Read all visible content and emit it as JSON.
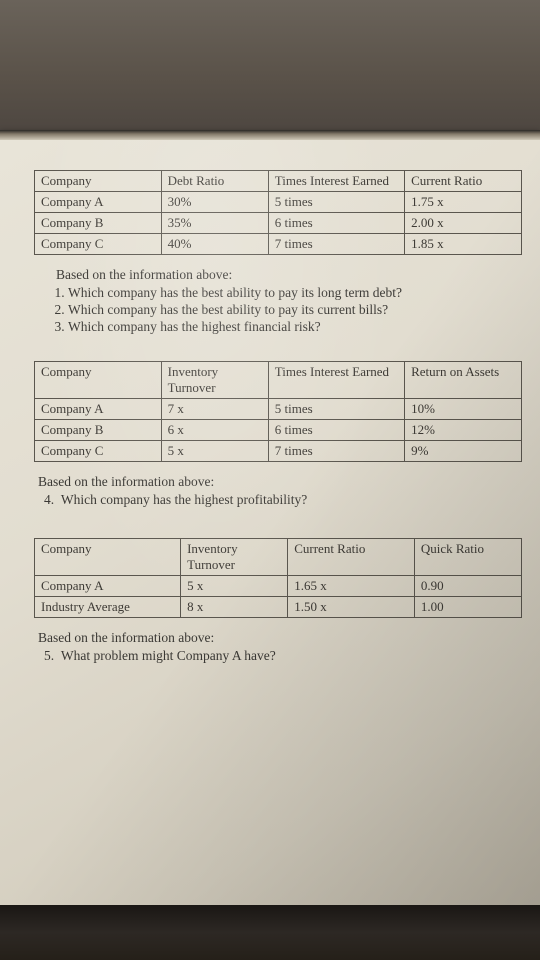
{
  "colors": {
    "ink": "#3a3834",
    "border": "#5a564e",
    "paper_light": "#e8e4d8",
    "paper_dark": "#c7c0b0",
    "wall": "#5a5249",
    "desk": "#252019"
  },
  "table1": {
    "headers": [
      "Company",
      "Debt Ratio",
      "Times Interest Earned",
      "Current Ratio"
    ],
    "rows": [
      [
        "Company A",
        "30%",
        "5 times",
        "1.75 x"
      ],
      [
        "Company B",
        "35%",
        "6 times",
        "2.00 x"
      ],
      [
        "Company C",
        "40%",
        "7 times",
        "1.85 x"
      ]
    ]
  },
  "q_block1": {
    "intro": "Based on the information above:",
    "items": [
      "Which company has the best ability to pay its long term debt?",
      "Which company has the best ability to pay its current bills?",
      "Which company has the highest financial risk?"
    ]
  },
  "table2": {
    "headers": [
      "Company",
      "Inventory Turnover",
      "Times Interest Earned",
      "Return on Assets"
    ],
    "rows": [
      [
        "Company A",
        "7 x",
        "5 times",
        "10%"
      ],
      [
        "Company B",
        "6 x",
        "6 times",
        "12%"
      ],
      [
        "Company C",
        "5 x",
        "7 times",
        "9%"
      ]
    ]
  },
  "q_block2": {
    "intro": "Based on the information above:",
    "number": "4.",
    "item": "Which company has the highest profitability?"
  },
  "table3": {
    "headers": [
      "Company",
      "Inventory Turnover",
      "Current Ratio",
      "Quick Ratio"
    ],
    "rows": [
      [
        "Company A",
        "5 x",
        "1.65 x",
        "0.90"
      ],
      [
        "Industry Average",
        "8 x",
        "1.50 x",
        "1.00"
      ]
    ]
  },
  "q_block3": {
    "intro": "Based on the information above:",
    "number": "5.",
    "item": "What problem might Company A have?"
  }
}
